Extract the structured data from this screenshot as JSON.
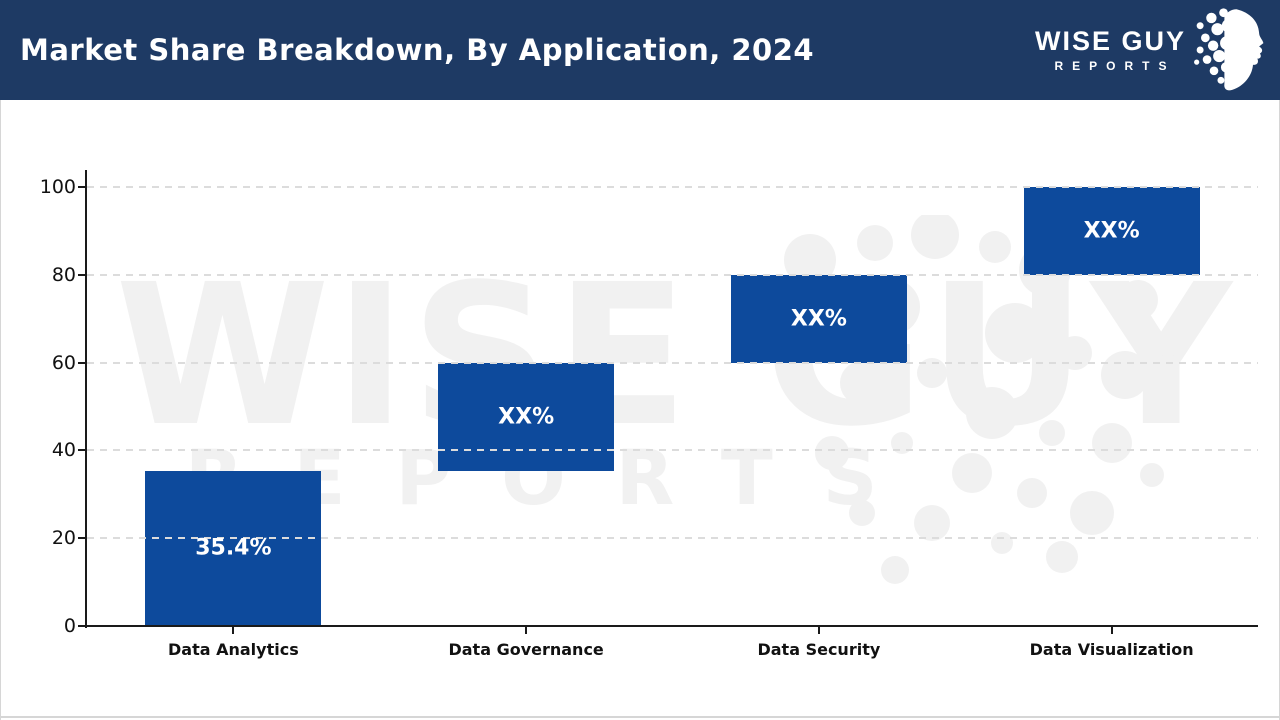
{
  "colors": {
    "header_bg": "#1e3a64",
    "bar": "#0d4a9c",
    "grid": "#dcdcdc",
    "axis": "#1a1a1a",
    "text": "#111111",
    "bar_label": "#ffffff",
    "watermark": "#f1f1f1",
    "page_border": "#d6d6d6"
  },
  "header": {
    "title": "Market Share Breakdown, By Application, 2024",
    "logo": {
      "line1": "WISE GUY",
      "line2": "REPORTS",
      "icon": "dotted-head-profile"
    }
  },
  "watermark": {
    "line1": "WISE GUY",
    "line2": "REPORTS",
    "icon": "dotted-head-profile"
  },
  "chart_data": {
    "type": "bar",
    "subtype": "floating-waterfall",
    "title": "Market Share Breakdown, By Application, 2024",
    "categories": [
      "Data Analytics",
      "Data Governance",
      "Data Security",
      "Data Visualization"
    ],
    "bars": [
      {
        "category": "Data Analytics",
        "start": 0,
        "end": 35.4,
        "label": "35.4%"
      },
      {
        "category": "Data Governance",
        "start": 35.4,
        "end": 60,
        "label": "XX%"
      },
      {
        "category": "Data Security",
        "start": 60,
        "end": 80,
        "label": "XX%"
      },
      {
        "category": "Data Visualization",
        "start": 80,
        "end": 100,
        "label": "XX%"
      }
    ],
    "ylim": [
      0,
      100
    ],
    "yticks": [
      0,
      20,
      40,
      60,
      80,
      100
    ],
    "xlabel": "",
    "ylabel": "",
    "grid": "horizontal-dashed-above-bars",
    "legend": "none",
    "bar_color": "#0d4a9c",
    "value_label_color": "#ffffff"
  }
}
